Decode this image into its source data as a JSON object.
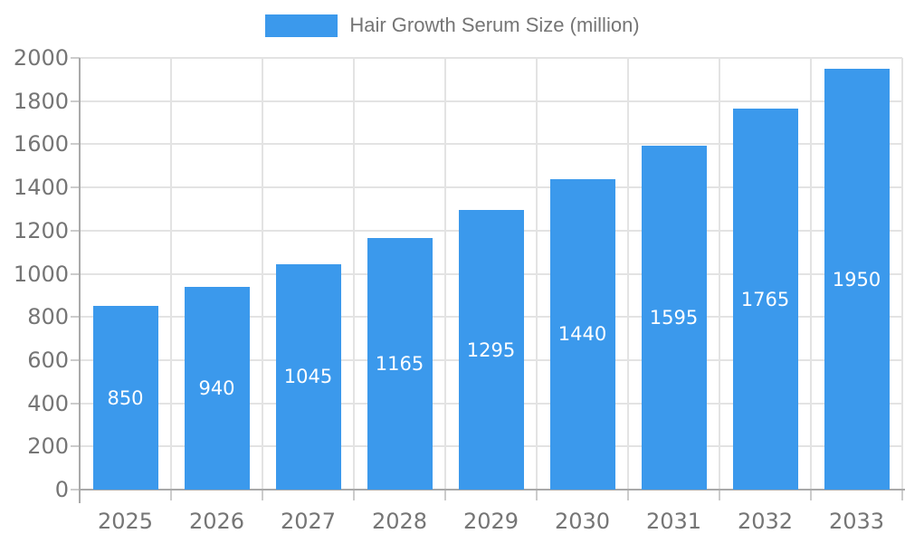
{
  "legend": {
    "label": "Hair Growth Serum Size (million)",
    "position": "top"
  },
  "chart_data": {
    "type": "bar",
    "title": "Hair Growth Serum Size (million)",
    "categories": [
      "2025",
      "2026",
      "2027",
      "2028",
      "2029",
      "2030",
      "2031",
      "2032",
      "2033"
    ],
    "values": [
      850,
      940,
      1045,
      1165,
      1295,
      1440,
      1595,
      1765,
      1950
    ],
    "xlabel": "",
    "ylabel": "",
    "ylim": [
      0,
      2000
    ],
    "ytick_step": 200,
    "yticks": [
      0,
      200,
      400,
      600,
      800,
      1000,
      1200,
      1400,
      1600,
      1800,
      2000
    ],
    "bar_value_labels_visible": true,
    "grid": true,
    "legend_position": "top"
  },
  "colors": {
    "bar": "#3B99EC",
    "bar_label": "#FFFFFF",
    "grid": "#E3E3E3",
    "axis": "#A9A9A9",
    "tick": "#CCCCCC",
    "text": "#757575",
    "background": "#FFFFFF"
  }
}
